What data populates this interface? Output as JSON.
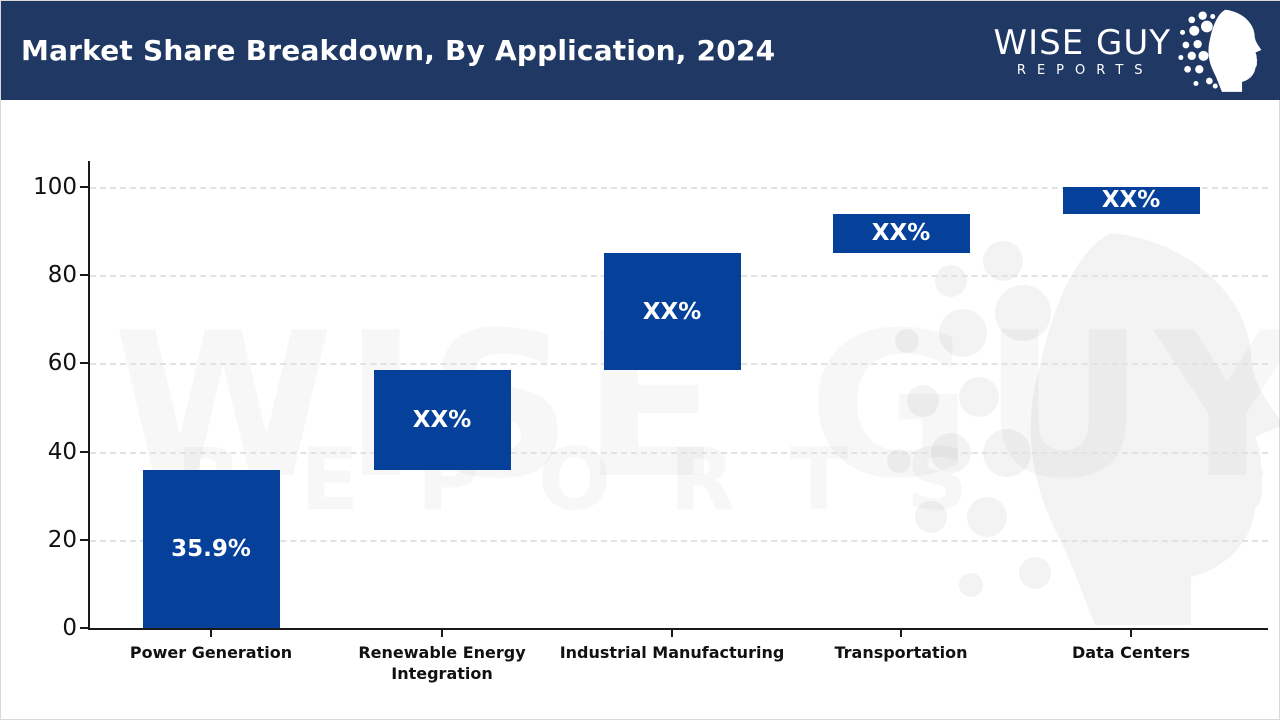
{
  "header": {
    "title": "Market Share Breakdown, By Application, 2024",
    "bg_color": "#203864",
    "logo": {
      "line1": "WISE GUY",
      "line2": "REPORTS"
    }
  },
  "watermark": {
    "line1": "WISE GUY",
    "line2": "REPORTS"
  },
  "chart_data": {
    "type": "bar",
    "subtype": "waterfall",
    "title": "Market Share Breakdown, By Application, 2024",
    "categories": [
      "Power Generation",
      "Renewable Energy Integration",
      "Industrial Manufacturing",
      "Transportation",
      "Data Centers"
    ],
    "segments": [
      {
        "category": "Power Generation",
        "start": 0,
        "end": 35.9,
        "label": "35.9%"
      },
      {
        "category": "Renewable Energy Integration",
        "start": 35.9,
        "end": 58.4,
        "label": "XX%"
      },
      {
        "category": "Industrial Manufacturing",
        "start": 58.4,
        "end": 85.1,
        "label": "XX%"
      },
      {
        "category": "Transportation",
        "start": 85.1,
        "end": 93.9,
        "label": "XX%"
      },
      {
        "category": "Data Centers",
        "start": 93.9,
        "end": 100,
        "label": "XX%"
      }
    ],
    "xlabel": "",
    "ylabel": "",
    "ylim": [
      0,
      106
    ],
    "yticks": [
      0,
      20,
      40,
      60,
      80,
      100
    ],
    "grid": "horizontal-dashed",
    "legend": "none",
    "bar_color": "#05419A",
    "axis_color": "#1a1a1a"
  }
}
